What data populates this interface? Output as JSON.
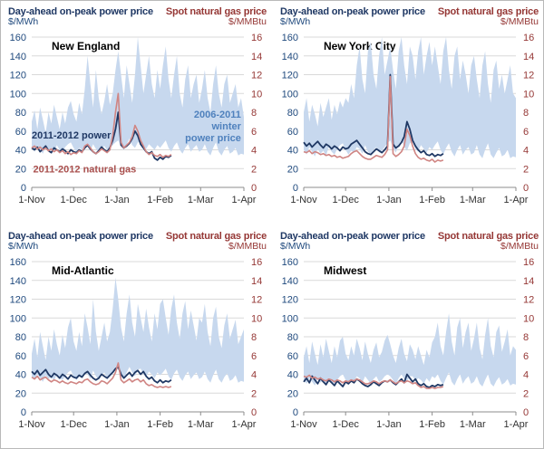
{
  "labels": {
    "power_title": "Day-ahead on-peak power price",
    "gas_title": "Spot natural gas price",
    "left_unit": "$/MWh",
    "right_unit": "$/MMBtu"
  },
  "colors": {
    "power": "#1f3864",
    "gas": "#d08583",
    "band": "#c7d8ee",
    "left_axis": "#1f497d",
    "right_axis": "#953735",
    "annot_blue": "#4f81bd",
    "annot_red": "#a94f4d",
    "grid": "#d9d9d9",
    "axis_line": "#8c8c8c",
    "x_label": "#333333"
  },
  "axis": {
    "y_max": 160,
    "y_left_ticks": [
      0,
      20,
      40,
      60,
      80,
      100,
      120,
      140,
      160
    ],
    "y_right_ticks": [
      0,
      2,
      4,
      6,
      8,
      10,
      12,
      14,
      16
    ],
    "x_max_day": 152,
    "x_ticks": [
      {
        "label": "1-Nov",
        "day": 0
      },
      {
        "label": "1-Dec",
        "day": 30
      },
      {
        "label": "1-Jan",
        "day": 61
      },
      {
        "label": "1-Feb",
        "day": 92
      },
      {
        "label": "1-Mar",
        "day": 121
      },
      {
        "label": "1-Apr",
        "day": 152
      }
    ]
  },
  "chart_data": [
    {
      "type": "line+band",
      "region": "New England",
      "band": {
        "name": "2006-2011 winter power price range ($/MWh)",
        "step_days": 2,
        "upper": [
          70,
          82,
          62,
          85,
          72,
          58,
          80,
          68,
          88,
          75,
          62,
          80,
          68,
          85,
          92,
          78,
          70,
          90,
          78,
          105,
          140,
          110,
          85,
          125,
          95,
          78,
          92,
          110,
          88,
          100,
          125,
          145,
          120,
          95,
          130,
          110,
          90,
          120,
          160,
          130,
          100,
          120,
          140,
          110,
          95,
          125,
          105,
          130,
          150,
          115,
          95,
          120,
          140,
          100,
          85,
          115,
          130,
          95,
          110,
          120,
          90,
          105,
          125,
          95,
          80,
          110,
          130,
          100,
          85,
          110,
          120,
          90,
          100,
          110,
          85,
          95,
          75
        ],
        "lower": [
          42,
          38,
          45,
          40,
          36,
          44,
          39,
          42,
          37,
          45,
          40,
          38,
          43,
          46,
          48,
          42,
          38,
          42,
          40,
          45,
          43,
          39,
          46,
          41,
          38,
          42,
          44,
          40,
          42,
          45,
          48,
          50,
          44,
          40,
          46,
          52,
          45,
          42,
          48,
          50,
          44,
          41,
          46,
          43,
          40,
          45,
          42,
          46,
          50,
          42,
          38,
          44,
          48,
          40,
          36,
          42,
          46,
          38,
          42,
          45,
          38,
          40,
          46,
          38,
          34,
          42,
          48,
          38,
          34,
          40,
          44,
          36,
          38,
          42,
          34,
          36,
          35
        ]
      },
      "power": {
        "name": "2011-2012 power ($/MWh)",
        "step_days": 2,
        "values": [
          42,
          40,
          43,
          38,
          41,
          44,
          39,
          37,
          42,
          40,
          38,
          41,
          39,
          36,
          40,
          38,
          37,
          40,
          38,
          42,
          45,
          41,
          38,
          36,
          39,
          43,
          40,
          38,
          42,
          50,
          62,
          80,
          45,
          42,
          44,
          47,
          52,
          60,
          55,
          46,
          42,
          38,
          36,
          38,
          31,
          29,
          32,
          30,
          33,
          32,
          34
        ]
      },
      "gas": {
        "name": "2011-2012 natural gas ($/MMBtu)",
        "step_days": 2,
        "values": [
          4.2,
          4.4,
          4.1,
          4.3,
          4.0,
          4.2,
          3.9,
          4.1,
          3.8,
          4.0,
          3.7,
          3.9,
          3.6,
          3.8,
          3.5,
          3.7,
          3.6,
          3.9,
          3.7,
          4.4,
          4.6,
          4.2,
          3.8,
          3.6,
          3.8,
          4.1,
          3.9,
          3.7,
          4.0,
          5.5,
          8.0,
          10.0,
          4.8,
          4.2,
          4.5,
          4.8,
          5.4,
          6.6,
          6.0,
          5.0,
          4.4,
          3.8,
          3.5,
          3.7,
          3.4,
          3.3,
          3.5,
          3.2,
          3.4,
          3.3,
          3.5
        ]
      },
      "annotations": [
        {
          "lines": [
            "2011-2012 power"
          ],
          "day": 0,
          "value": 52,
          "anchor": "start",
          "color": "power"
        },
        {
          "lines": [
            "2011-2012 natural gas"
          ],
          "day": 1,
          "value": 16,
          "anchor": "start",
          "color": "annot_red"
        },
        {
          "lines": [
            "2006-2011",
            "winter",
            "power price"
          ],
          "day": 150,
          "value": 74,
          "anchor": "end",
          "color": "annot_blue"
        }
      ]
    },
    {
      "type": "line+band",
      "region": "New York City",
      "band": {
        "name": "2006-2011 winter power price range ($/MWh)",
        "step_days": 2,
        "upper": [
          80,
          95,
          70,
          88,
          78,
          65,
          90,
          75,
          85,
          95,
          72,
          88,
          78,
          92,
          85,
          95,
          90,
          110,
          95,
          130,
          150,
          115,
          100,
          145,
          155,
          120,
          105,
          140,
          160,
          120,
          135,
          150,
          125,
          105,
          145,
          160,
          130,
          110,
          150,
          140,
          115,
          145,
          160,
          120,
          140,
          155,
          130,
          150,
          130,
          110,
          145,
          160,
          125,
          105,
          140,
          150,
          115,
          135,
          120,
          100,
          130,
          140,
          115,
          95,
          130,
          145,
          110,
          90,
          125,
          135,
          105,
          120,
          100,
          115,
          130,
          100,
          95
        ],
        "lower": [
          40,
          35,
          43,
          38,
          33,
          41,
          36,
          39,
          34,
          43,
          38,
          35,
          41,
          45,
          47,
          40,
          35,
          39,
          37,
          43,
          41,
          36,
          45,
          38,
          35,
          40,
          43,
          37,
          39,
          43,
          47,
          50,
          42,
          37,
          45,
          51,
          43,
          39,
          47,
          49,
          41,
          38,
          45,
          41,
          37,
          43,
          40,
          45,
          49,
          40,
          35,
          42,
          47,
          38,
          33,
          40,
          45,
          35,
          40,
          43,
          35,
          37,
          45,
          35,
          31,
          40,
          47,
          35,
          31,
          37,
          42,
          33,
          35,
          40,
          31,
          33,
          32
        ]
      },
      "power": {
        "name": "2011-2012 power ($/MWh)",
        "step_days": 2,
        "values": [
          48,
          44,
          47,
          43,
          46,
          49,
          45,
          42,
          46,
          44,
          41,
          44,
          42,
          39,
          43,
          41,
          42,
          46,
          48,
          50,
          46,
          42,
          38,
          36,
          35,
          38,
          41,
          39,
          37,
          40,
          44,
          120,
          46,
          42,
          44,
          48,
          54,
          70,
          62,
          50,
          44,
          40,
          37,
          39,
          35,
          34,
          36,
          33,
          35,
          34,
          36
        ]
      },
      "gas": {
        "name": "2011-2012 natural gas ($/MMBtu)",
        "step_days": 2,
        "values": [
          3.8,
          3.7,
          3.9,
          3.6,
          3.8,
          3.7,
          3.5,
          3.6,
          3.4,
          3.5,
          3.3,
          3.4,
          3.2,
          3.3,
          3.1,
          3.2,
          3.3,
          3.6,
          3.8,
          3.9,
          3.6,
          3.3,
          3.1,
          3.0,
          3.0,
          3.2,
          3.4,
          3.3,
          3.2,
          3.5,
          4.0,
          11.8,
          3.6,
          3.3,
          3.5,
          3.8,
          4.4,
          6.2,
          5.5,
          4.4,
          3.6,
          3.2,
          3.0,
          3.1,
          2.9,
          2.8,
          3.0,
          2.7,
          2.9,
          2.8,
          2.9
        ]
      },
      "annotations": []
    },
    {
      "type": "line+band",
      "region": "Mid-Atlantic",
      "band": {
        "name": "2006-2011 winter power price range ($/MWh)",
        "step_days": 2,
        "upper": [
          62,
          78,
          58,
          85,
          70,
          55,
          80,
          65,
          88,
          72,
          60,
          82,
          68,
          90,
          100,
          75,
          65,
          85,
          70,
          105,
          90,
          72,
          120,
          85,
          65,
          80,
          95,
          75,
          85,
          110,
          143,
          120,
          90,
          75,
          105,
          125,
          95,
          80,
          115,
          100,
          85,
          110,
          90,
          75,
          105,
          88,
          115,
          120,
          100,
          82,
          110,
          125,
          95,
          78,
          105,
          118,
          88,
          108,
          92,
          76,
          100,
          95,
          115,
          85,
          70,
          100,
          112,
          80,
          68,
          92,
          105,
          78,
          88,
          98,
          72,
          80,
          88
        ],
        "lower": [
          38,
          34,
          40,
          36,
          32,
          39,
          35,
          38,
          33,
          40,
          36,
          34,
          38,
          42,
          44,
          38,
          34,
          38,
          36,
          42,
          40,
          35,
          44,
          38,
          34,
          39,
          42,
          36,
          38,
          42,
          46,
          45,
          40,
          36,
          42,
          48,
          42,
          38,
          45,
          46,
          40,
          38,
          43,
          40,
          36,
          42,
          39,
          42,
          46,
          38,
          34,
          41,
          45,
          37,
          33,
          39,
          43,
          35,
          39,
          42,
          35,
          37,
          43,
          35,
          31,
          39,
          45,
          35,
          31,
          37,
          41,
          33,
          35,
          39,
          31,
          33,
          32
        ]
      },
      "power": {
        "name": "2011-2012 power ($/MWh)",
        "step_days": 2,
        "values": [
          43,
          40,
          44,
          39,
          42,
          45,
          40,
          37,
          41,
          39,
          36,
          40,
          38,
          35,
          39,
          37,
          36,
          39,
          37,
          41,
          43,
          39,
          36,
          34,
          36,
          40,
          38,
          36,
          39,
          42,
          46,
          48,
          40,
          36,
          39,
          42,
          38,
          42,
          44,
          40,
          43,
          38,
          35,
          37,
          33,
          31,
          34,
          31,
          33,
          32,
          34
        ]
      },
      "gas": {
        "name": "2011-2012 natural gas ($/MMBtu)",
        "step_days": 2,
        "values": [
          3.7,
          3.5,
          3.8,
          3.4,
          3.6,
          3.7,
          3.4,
          3.2,
          3.4,
          3.3,
          3.1,
          3.3,
          3.1,
          3.0,
          3.2,
          3.1,
          3.0,
          3.2,
          3.1,
          3.4,
          3.5,
          3.2,
          3.0,
          2.9,
          3.0,
          3.3,
          3.2,
          3.0,
          3.3,
          3.6,
          4.2,
          5.2,
          3.4,
          3.1,
          3.3,
          3.5,
          3.2,
          3.4,
          3.5,
          3.2,
          3.4,
          3.0,
          2.8,
          2.9,
          2.7,
          2.6,
          2.7,
          2.6,
          2.7,
          2.6,
          2.7
        ]
      },
      "annotations": []
    },
    {
      "type": "line+band",
      "region": "Midwest",
      "band": {
        "name": "2006-2011 winter power price range ($/MWh)",
        "step_days": 2,
        "upper": [
          58,
          70,
          52,
          75,
          62,
          50,
          72,
          58,
          78,
          65,
          52,
          70,
          58,
          76,
          80,
          62,
          55,
          70,
          60,
          78,
          68,
          55,
          75,
          62,
          52,
          66,
          74,
          58,
          64,
          76,
          82,
          72,
          60,
          52,
          68,
          78,
          62,
          54,
          72,
          66,
          56,
          70,
          60,
          50,
          66,
          58,
          74,
          80,
          95,
          70,
          60,
          85,
          105,
          75,
          60,
          90,
          100,
          68,
          85,
          95,
          65,
          78,
          95,
          68,
          56,
          82,
          100,
          70,
          58,
          85,
          92,
          64,
          75,
          88,
          60,
          70,
          66
        ],
        "lower": [
          34,
          30,
          36,
          32,
          28,
          35,
          31,
          34,
          29,
          36,
          32,
          30,
          34,
          38,
          40,
          34,
          30,
          34,
          32,
          38,
          36,
          31,
          38,
          34,
          30,
          35,
          38,
          32,
          34,
          38,
          40,
          38,
          34,
          30,
          36,
          40,
          35,
          32,
          38,
          38,
          33,
          36,
          34,
          30,
          36,
          32,
          38,
          36,
          40,
          33,
          29,
          36,
          42,
          32,
          28,
          35,
          40,
          30,
          35,
          38,
          30,
          32,
          38,
          30,
          27,
          34,
          40,
          30,
          27,
          33,
          37,
          29,
          31,
          35,
          28,
          30,
          29
        ]
      },
      "power": {
        "name": "2011-2012 power ($/MWh)",
        "step_days": 2,
        "values": [
          32,
          36,
          31,
          38,
          34,
          30,
          36,
          32,
          29,
          34,
          31,
          28,
          33,
          30,
          27,
          32,
          30,
          33,
          31,
          35,
          33,
          30,
          28,
          27,
          29,
          32,
          30,
          28,
          31,
          33,
          32,
          34,
          31,
          29,
          32,
          35,
          31,
          40,
          36,
          32,
          35,
          30,
          28,
          30,
          27,
          26,
          28,
          27,
          29,
          28,
          29
        ]
      },
      "gas": {
        "name": "2011-2012 natural gas ($/MMBtu)",
        "step_days": 2,
        "values": [
          3.8,
          3.7,
          3.9,
          3.6,
          3.7,
          3.5,
          3.6,
          3.4,
          3.3,
          3.5,
          3.4,
          3.2,
          3.4,
          3.3,
          3.1,
          3.3,
          3.2,
          3.4,
          3.3,
          3.5,
          3.4,
          3.2,
          3.0,
          3.0,
          3.1,
          3.3,
          3.2,
          3.0,
          3.2,
          3.3,
          3.2,
          3.4,
          3.2,
          3.0,
          3.2,
          3.3,
          3.1,
          3.3,
          3.2,
          3.0,
          3.1,
          2.8,
          2.6,
          2.7,
          2.5,
          2.5,
          2.6,
          2.5,
          2.6,
          2.6,
          2.7
        ]
      },
      "annotations": []
    }
  ]
}
